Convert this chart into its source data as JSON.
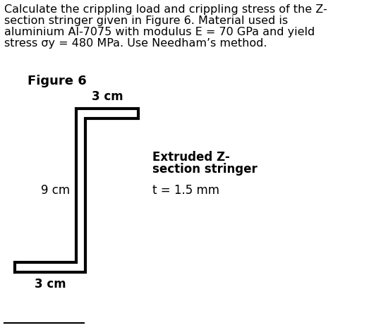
{
  "line1": "Calculate the crippling load and crippling stress of the Z-",
  "line2": "section stringer given in Figure 6. Material used is",
  "line3": "aluminium Al-7075 with modulus E = 70 GPa and yield",
  "line4": "stress σy = 480 MPa. Use Needham’s method.",
  "figure_label": "Figure 6",
  "dim_top": "3 cm",
  "dim_left": "9 cm",
  "dim_bottom": "3 cm",
  "ann1": "Extruded Z-",
  "ann2": "section stringer",
  "ann3": "t = 1.5 mm",
  "bg_color": "#ffffff",
  "line_color": "#000000",
  "text_color": "#000000",
  "lw": 3.0,
  "title_fontsize": 11.5,
  "label_fontsize": 12,
  "ann_fontsize": 12
}
